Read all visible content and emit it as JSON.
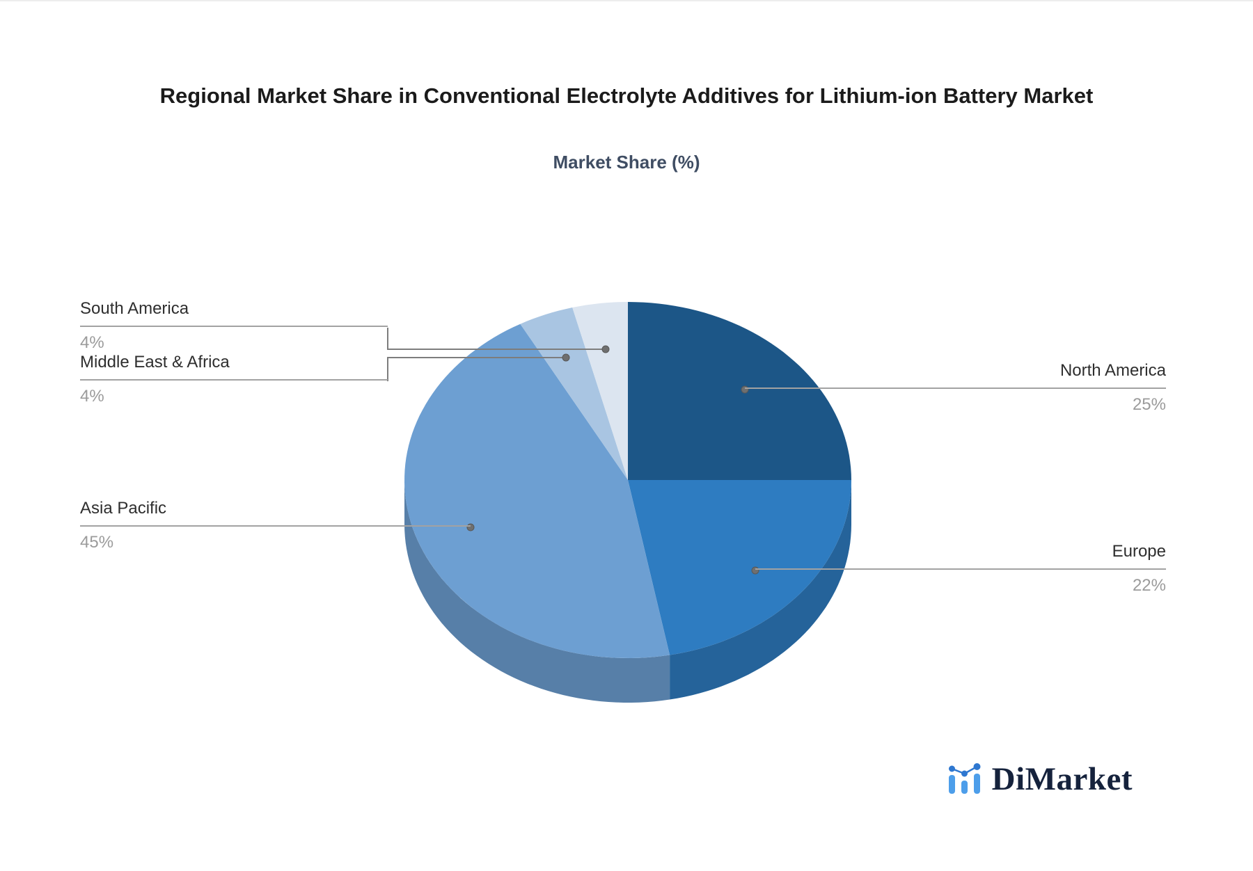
{
  "chart_data": {
    "type": "pie",
    "title": "Regional Market Share in Conventional Electrolyte Additives for Lithium-ion Battery Market",
    "subtitle": "Market Share (%)",
    "unit": "%",
    "direction": "clockwise",
    "start_angle_deg": 0,
    "style_3d": true,
    "legend": "none",
    "label_position": "outside-callout",
    "categories": [
      "North America",
      "Europe",
      "Asia Pacific",
      "Middle East & Africa",
      "South America"
    ],
    "values": [
      25,
      22,
      45,
      4,
      4
    ],
    "display_labels": [
      "25%",
      "22%",
      "45%",
      "4%",
      "4%"
    ],
    "colors": [
      "#1c5687",
      "#2e7cc1",
      "#6d9fd2",
      "#a9c5e2",
      "#dce5f0"
    ],
    "callout_line_color": "#7d7d7d",
    "underline_color": "#a2a2a2"
  },
  "logo": {
    "text": "DiMarket",
    "icon": "bar-line-chart-icon",
    "icon_bar_color": "#4d9eea",
    "icon_dot_color": "#2e77d0",
    "text_color": "#15223c"
  }
}
